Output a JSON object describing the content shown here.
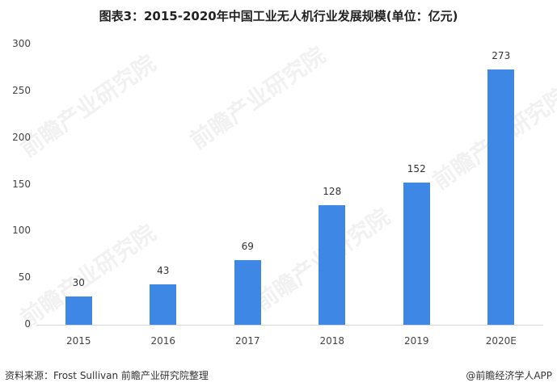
{
  "title": "图表3：2015-2020年中国工业无人机行业发展规模(单位：亿元)",
  "footer": {
    "source": "资料来源：Frost Sullivan 前瞻产业研究院整理",
    "credit": "@前瞻经济学人APP"
  },
  "watermark": "前瞻产业研究院",
  "colors": {
    "bar": "#3e87e5",
    "axis": "#d6d6d6"
  },
  "chart_data": {
    "type": "bar",
    "title": "图表3：2015-2020年中国工业无人机行业发展规模(单位：亿元)",
    "xlabel": "",
    "ylabel": "亿元",
    "categories": [
      "2015",
      "2016",
      "2017",
      "2018",
      "2019",
      "2020E"
    ],
    "values": [
      30,
      43,
      69,
      128,
      152,
      273
    ],
    "ylim": [
      0,
      300
    ],
    "yticks": [
      "0",
      "50",
      "100",
      "150",
      "200",
      "250",
      "300"
    ],
    "grid": false,
    "legend": null,
    "data_labels": [
      "30",
      "43",
      "69",
      "128",
      "152",
      "273"
    ]
  }
}
